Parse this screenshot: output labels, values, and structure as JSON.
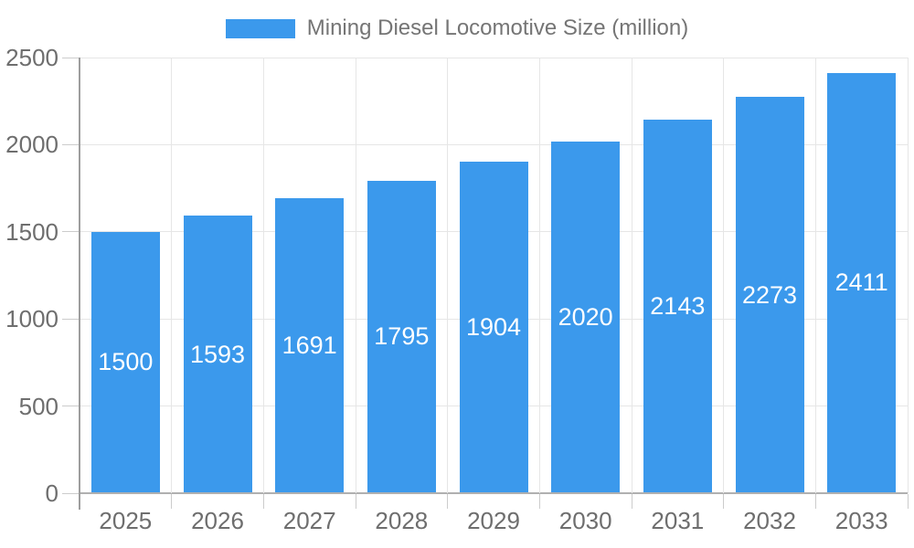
{
  "legend": {
    "position": "top"
  },
  "chart_data": {
    "type": "bar",
    "title": "Mining Diesel Locomotive Size (million)",
    "categories": [
      "2025",
      "2026",
      "2027",
      "2028",
      "2029",
      "2030",
      "2031",
      "2032",
      "2033"
    ],
    "values": [
      1500,
      1593,
      1691,
      1795,
      1904,
      2020,
      2143,
      2273,
      2411
    ],
    "xlabel": "",
    "ylabel": "",
    "ylim": [
      0,
      2500
    ],
    "yticks": [
      0,
      500,
      1000,
      1500,
      2000,
      2500
    ],
    "grid": true,
    "legend_position": "top",
    "colors": {
      "bar": "#3b99ec",
      "grid_line": "#e6e6e6",
      "tick_line": "#cccccc",
      "axis_line": "#9e9e9e",
      "baseline": "#b0b0b0",
      "tick_text": "#6e6e6e",
      "legend_text": "#757575",
      "value_label_text": "#ffffff",
      "background": "#ffffff"
    }
  }
}
